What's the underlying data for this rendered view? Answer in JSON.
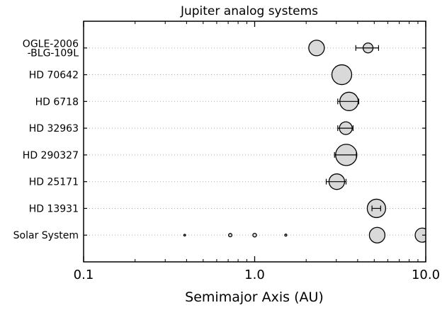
{
  "chart_data": {
    "type": "scatter",
    "title": "Jupiter analog systems",
    "xlabel": "Semimajor Axis (AU)",
    "xscale": "log",
    "xlim": [
      0.1,
      10.0
    ],
    "xticks": [
      0.1,
      1.0,
      10.0
    ],
    "xtick_labels": [
      "0.1",
      "1.0",
      "10.0"
    ],
    "grid": "horizontal-dotted",
    "legend": "none",
    "marker_fill": "#d9d9d9",
    "marker_stroke": "#000000",
    "gridline_color": "#b0b0b0",
    "rows": [
      {
        "label_lines": [
          "OGLE-2006",
          "-BLG-109L"
        ],
        "points": [
          {
            "a": 2.3,
            "r": 11,
            "err": 0
          },
          {
            "a": 4.6,
            "r": 7,
            "err": 0.7
          }
        ]
      },
      {
        "label_lines": [
          "HD 70642"
        ],
        "points": [
          {
            "a": 3.23,
            "r": 14,
            "err": 0
          }
        ]
      },
      {
        "label_lines": [
          "HD 6718"
        ],
        "points": [
          {
            "a": 3.56,
            "r": 13,
            "err": 0.5
          }
        ]
      },
      {
        "label_lines": [
          "HD 32963"
        ],
        "points": [
          {
            "a": 3.41,
            "r": 9,
            "err": 0.35
          }
        ]
      },
      {
        "label_lines": [
          "HD 290327"
        ],
        "points": [
          {
            "a": 3.43,
            "r": 15,
            "err": 0.5
          }
        ]
      },
      {
        "label_lines": [
          "HD 25171"
        ],
        "points": [
          {
            "a": 3.02,
            "r": 11,
            "err": 0.4
          }
        ]
      },
      {
        "label_lines": [
          "HD 13931"
        ],
        "points": [
          {
            "a": 5.15,
            "r": 13,
            "err": 0.3
          }
        ]
      },
      {
        "label_lines": [
          "Solar System"
        ],
        "points": [
          {
            "a": 0.39,
            "r": 1.2,
            "err": 0
          },
          {
            "a": 0.72,
            "r": 2.4,
            "err": 0
          },
          {
            "a": 1.0,
            "r": 2.6,
            "err": 0
          },
          {
            "a": 1.52,
            "r": 1.4,
            "err": 0
          },
          {
            "a": 5.2,
            "r": 11,
            "err": 0
          },
          {
            "a": 9.54,
            "r": 10,
            "err": 0
          }
        ]
      }
    ]
  }
}
